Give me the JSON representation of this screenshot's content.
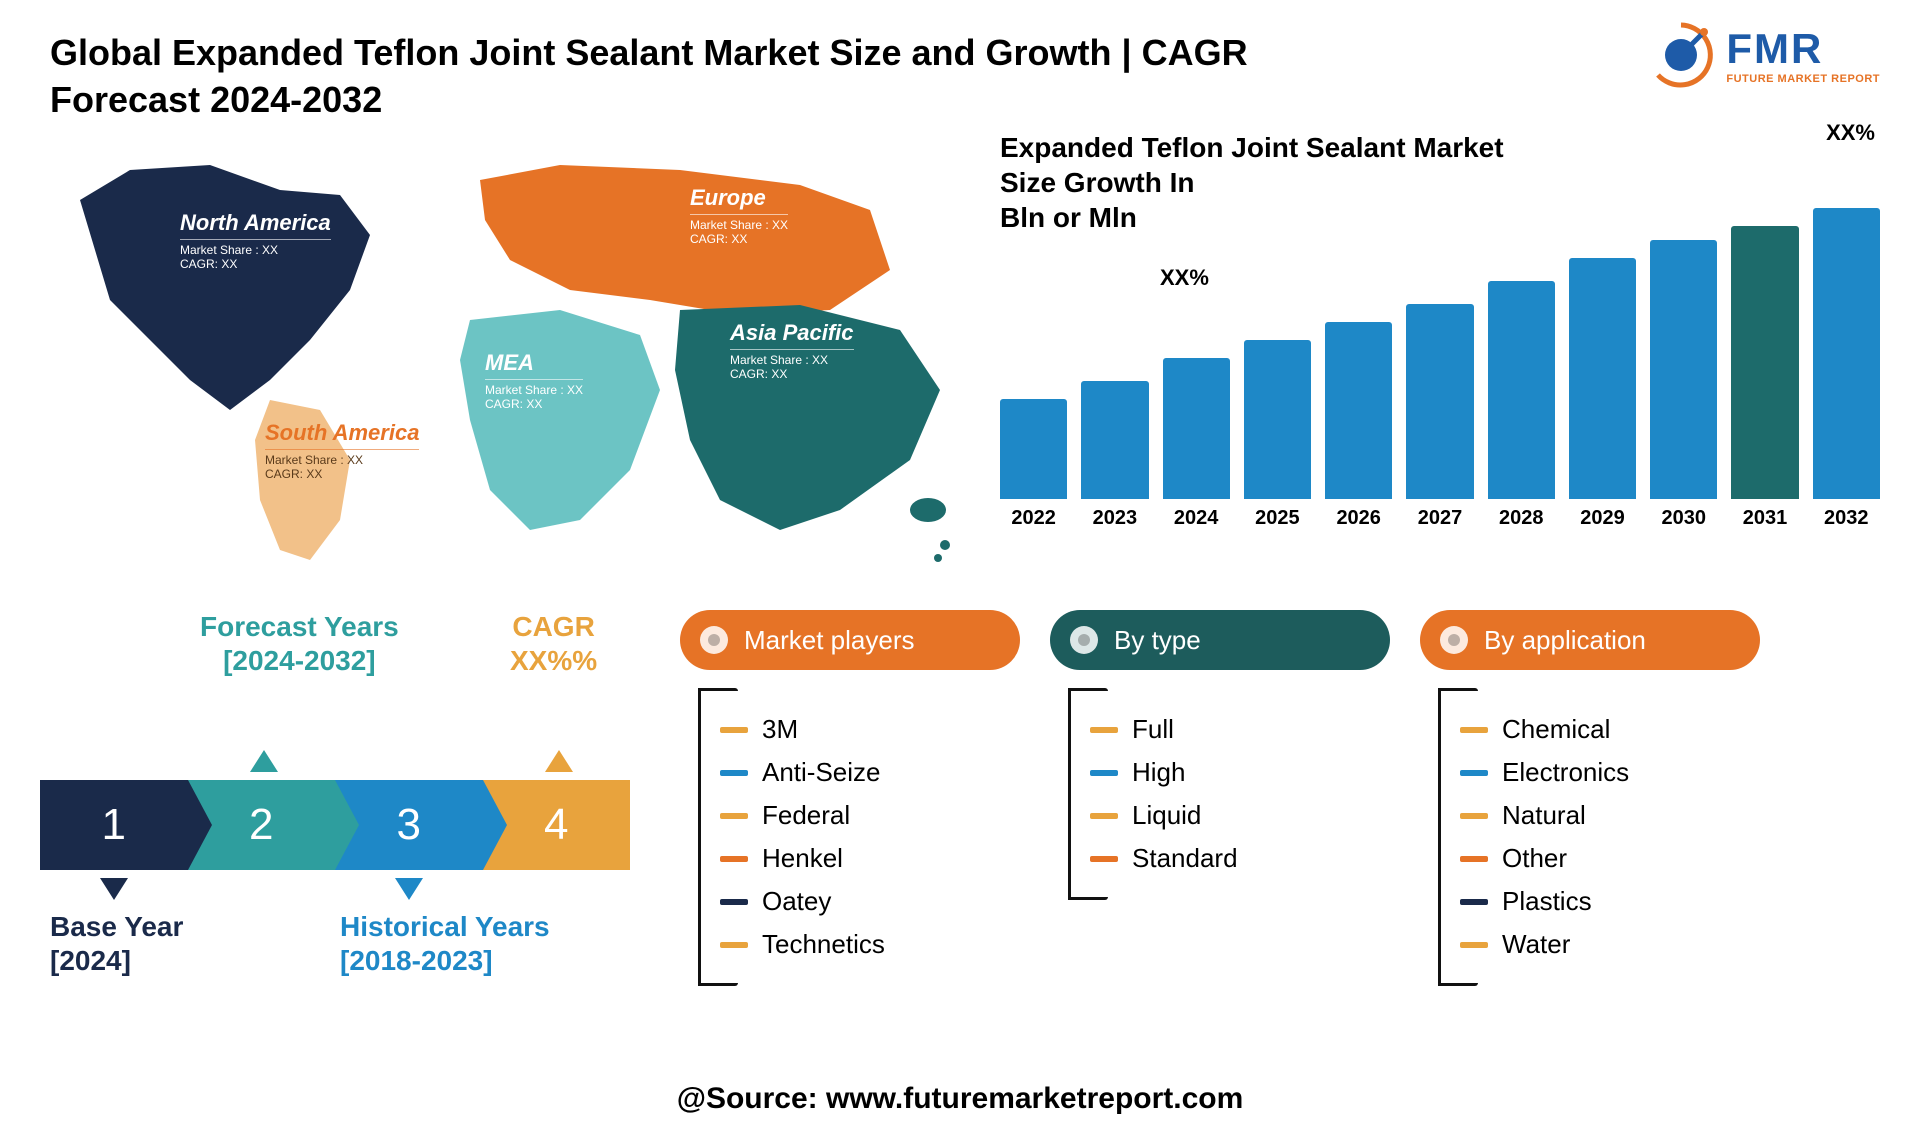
{
  "title": "Global Expanded Teflon Joint Sealant Market Size and Growth | CAGR Forecast 2024-2032",
  "logo": {
    "fmr": "FMR",
    "sub": "FUTURE MARKET REPORT"
  },
  "source": "@Source: www.futuremarketreport.com",
  "colors": {
    "navy": "#1a2a4a",
    "teal": "#2e9e9e",
    "blue": "#1e88c7",
    "orange": "#e8a33d",
    "darkorange": "#e67326",
    "darkteal": "#1d5c5c",
    "mapNA": "#1a2a4a",
    "mapSA": "#f2c189",
    "mapEU": "#e67326",
    "mapMEA": "#6cc4c4",
    "mapAP": "#1d6b6b",
    "bar": "#1e88c7",
    "barAlt": "#1d6b6b"
  },
  "map": {
    "regions": [
      {
        "key": "na",
        "name": "North America",
        "share": "Market Share : XX",
        "cagr": "CAGR: XX"
      },
      {
        "key": "sa",
        "name": "South America",
        "share": "Market Share : XX",
        "cagr": "CAGR: XX"
      },
      {
        "key": "eu",
        "name": "Europe",
        "share": "Market Share : XX",
        "cagr": "CAGR: XX"
      },
      {
        "key": "mea",
        "name": "MEA",
        "share": "Market Share : XX",
        "cagr": "CAGR: XX"
      },
      {
        "key": "ap",
        "name": "Asia Pacific",
        "share": "Market Share : XX",
        "cagr": "CAGR: XX"
      }
    ]
  },
  "chart": {
    "title": "Expanded Teflon Joint Sealant Market Size Growth In\nBln or Mln",
    "annot_left": "XX%",
    "annot_right": "XX%",
    "years": [
      "2022",
      "2023",
      "2024",
      "2025",
      "2026",
      "2027",
      "2028",
      "2029",
      "2030",
      "2031",
      "2032"
    ],
    "values": [
      110,
      130,
      155,
      175,
      195,
      215,
      240,
      265,
      285,
      300,
      320
    ],
    "alt_index": 9,
    "ymax": 330
  },
  "timeline": {
    "labels": {
      "base": {
        "text": "Base Year\n[2024]",
        "color": "#1a2a4a"
      },
      "forecast": {
        "text": "Forecast Years\n[2024-2032]",
        "color": "#2e9e9e"
      },
      "historical": {
        "text": "Historical Years\n[2018-2023]",
        "color": "#1e88c7"
      },
      "cagr": {
        "text": "CAGR\nXX%%",
        "color": "#e8a33d"
      }
    },
    "segments": [
      {
        "num": "1",
        "bg": "#1a2a4a"
      },
      {
        "num": "2",
        "bg": "#2e9e9e"
      },
      {
        "num": "3",
        "bg": "#1e88c7"
      },
      {
        "num": "4",
        "bg": "#e8a33d"
      }
    ]
  },
  "categories": [
    {
      "key": "players",
      "title": "Market players",
      "pill_color": "#e67326",
      "items": [
        {
          "label": "3M",
          "dash": "#e8a33d"
        },
        {
          "label": "Anti-Seize",
          "dash": "#1e88c7"
        },
        {
          "label": "Federal",
          "dash": "#e8a33d"
        },
        {
          "label": "Henkel",
          "dash": "#e67326"
        },
        {
          "label": "Oatey",
          "dash": "#1a2a4a"
        },
        {
          "label": "Technetics",
          "dash": "#e8a33d"
        }
      ]
    },
    {
      "key": "type",
      "title": "By type",
      "pill_color": "#1d5c5c",
      "items": [
        {
          "label": "Full",
          "dash": "#e8a33d"
        },
        {
          "label": "High",
          "dash": "#1e88c7"
        },
        {
          "label": "Liquid",
          "dash": "#e8a33d"
        },
        {
          "label": "Standard",
          "dash": "#e67326"
        }
      ]
    },
    {
      "key": "application",
      "title": "By application",
      "pill_color": "#e67326",
      "items": [
        {
          "label": "Chemical",
          "dash": "#e8a33d"
        },
        {
          "label": "Electronics",
          "dash": "#1e88c7"
        },
        {
          "label": "Natural",
          "dash": "#e8a33d"
        },
        {
          "label": "Other",
          "dash": "#e67326"
        },
        {
          "label": "Plastics",
          "dash": "#1a2a4a"
        },
        {
          "label": "Water",
          "dash": "#e8a33d"
        }
      ]
    }
  ]
}
